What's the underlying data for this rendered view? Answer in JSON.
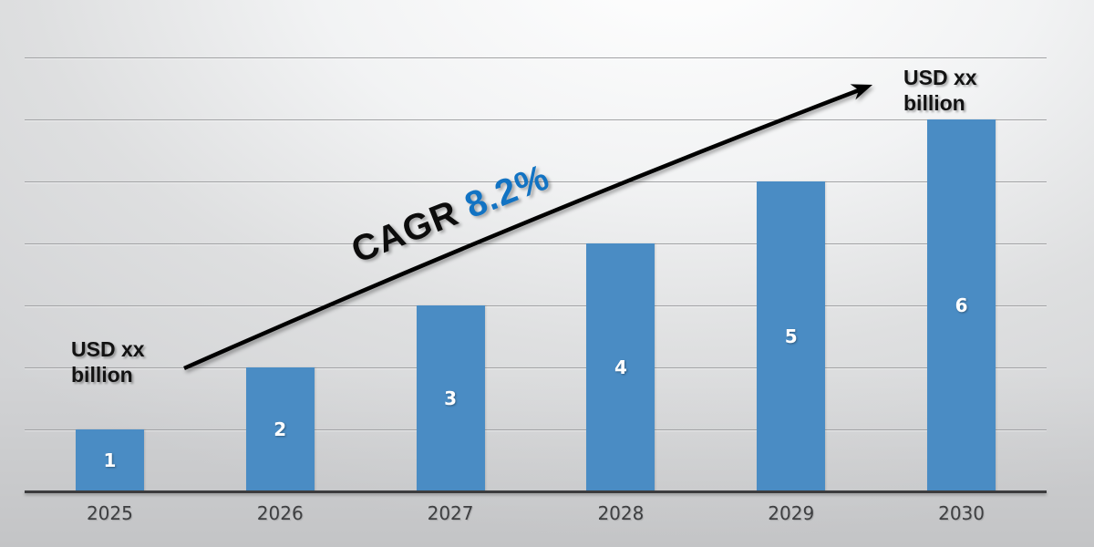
{
  "chart_data": {
    "type": "bar",
    "title": "",
    "xlabel": "",
    "ylabel": "",
    "categories": [
      "2025",
      "2026",
      "2027",
      "2028",
      "2029",
      "2030"
    ],
    "values": [
      1,
      2,
      3,
      4,
      5,
      6
    ],
    "bar_labels": [
      "1",
      "2",
      "3",
      "4",
      "5",
      "6"
    ],
    "ylim": [
      0,
      8
    ],
    "gridline_values": [
      1,
      2,
      3,
      4,
      5,
      6,
      7
    ],
    "grid": "on",
    "legend": "none",
    "bar_color": "#4A8CC4",
    "bar_label_color": "#ffffff",
    "gridline_color": "#a2a3a5",
    "axis_color": "#3c3c3e",
    "tick_label_color": "#3e3f41"
  },
  "annotations": {
    "start_label": "USD  xx\nbillion",
    "end_label": "USD xx\nbillion",
    "cagr_prefix": "CAGR ",
    "cagr_value": "8.2%",
    "cagr_value_color": "#1273C3",
    "arrow_color": "#060606"
  }
}
